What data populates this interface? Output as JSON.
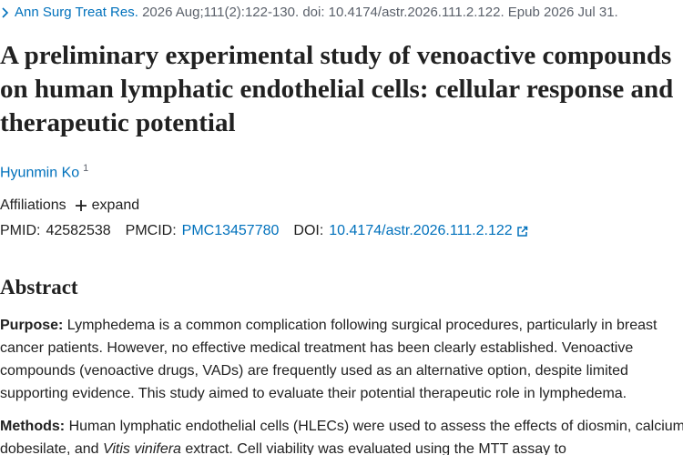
{
  "citation": {
    "journal": "Ann Surg Treat Res.",
    "details": "2026 Aug;111(2):122-130. doi: 10.4174/astr.2026.111.2.122. Epub 2026 Jul 31."
  },
  "title": "A preliminary experimental study of venoactive compounds on human lymphatic endothelial cells: cellular response and therapeutic potential",
  "authors": [
    {
      "name": "Hyunmin Ko",
      "affiliation_ref": "1"
    }
  ],
  "affiliations": {
    "label": "Affiliations",
    "toggle": "expand"
  },
  "identifiers": [
    {
      "label": "PMID:",
      "value": "42582538"
    },
    {
      "label": "PMCID:",
      "value": "PMC13457780"
    },
    {
      "label": "DOI:",
      "value": "10.4174/astr.2026.111.2.122"
    }
  ],
  "abstract": {
    "heading": "Abstract",
    "sections": [
      {
        "label": "Purpose:",
        "parts": [
          "Lymphedema is a common complication following surgical procedures, particularly in breast cancer patients. However, no effective medical treatment has been clearly established. Venoactive compounds (venoactive drugs, VADs) are frequently used as an alternative option, despite limited supporting evidence. This study aimed to evaluate their potential therapeutic role in lymphedema."
        ]
      },
      {
        "label": "Methods:",
        "parts": [
          "Human lymphatic endothelial cells (HLECs) were used to assess the effects of diosmin, calcium dobesilate, and ",
          "Vitis vinifera",
          " extract. Cell viability was evaluated using the MTT assay to"
        ]
      }
    ]
  }
}
